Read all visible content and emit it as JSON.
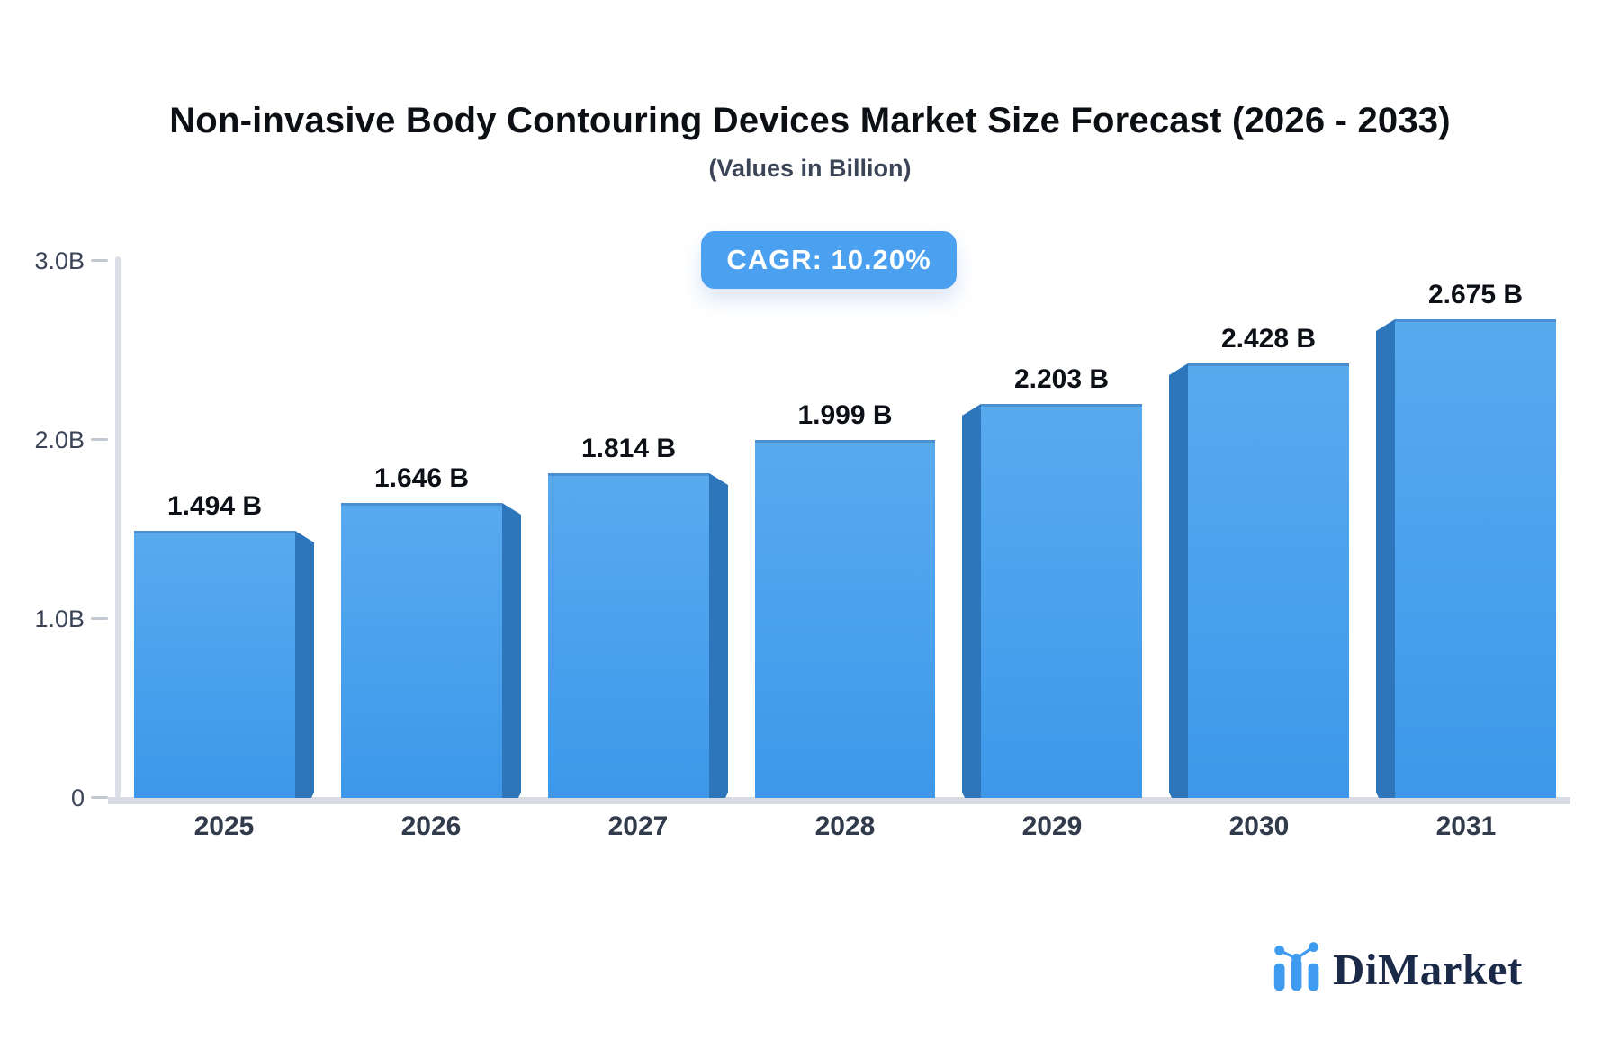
{
  "title": "Non-invasive Body Contouring Devices Market Size Forecast (2026 - 2033)",
  "subtitle": "(Values in Billion)",
  "badge": {
    "label": "CAGR: 10.20%",
    "background_color": "#4BA1EF",
    "text_color": "#ffffff"
  },
  "chart_data": {
    "type": "bar",
    "title": "Non-invasive Body Contouring Devices Market Size Forecast (2026 - 2033)",
    "subtitle": "(Values in Billion)",
    "categories": [
      "2025",
      "2026",
      "2027",
      "2028",
      "2029",
      "2030",
      "2031"
    ],
    "values": [
      1.494,
      1.646,
      1.814,
      1.999,
      2.203,
      2.428,
      2.675
    ],
    "value_labels": [
      "1.494 B",
      "1.646 B",
      "1.814 B",
      "1.999 B",
      "2.203 B",
      "2.428 B",
      "2.675 B"
    ],
    "xlabel": "",
    "ylabel": "",
    "ylim": [
      0,
      3.0
    ],
    "yticks": [
      {
        "label": "3.0B",
        "value": 3.0
      },
      {
        "label": "2.0B",
        "value": 2.0
      },
      {
        "label": "1.0B",
        "value": 1.0
      },
      {
        "label": "0",
        "value": 0.0
      }
    ],
    "grid": false,
    "legend": "none",
    "bar_style": "pseudo-3d",
    "bar_color_top": "#58AAEF",
    "bar_color_bottom": "#3D98EA",
    "bar_side_color": "#2E76BC",
    "axis_color": "#DCDFE5",
    "tick_color": "#C2C8D1",
    "label_color": "#0D1117",
    "category_label_color": "#323B4C"
  },
  "footer": {
    "brand": "DiMarket",
    "brand_color": "#1C2A49",
    "icon": "bar-chart-logo-icon",
    "icon_color": "#3E9BF0"
  }
}
